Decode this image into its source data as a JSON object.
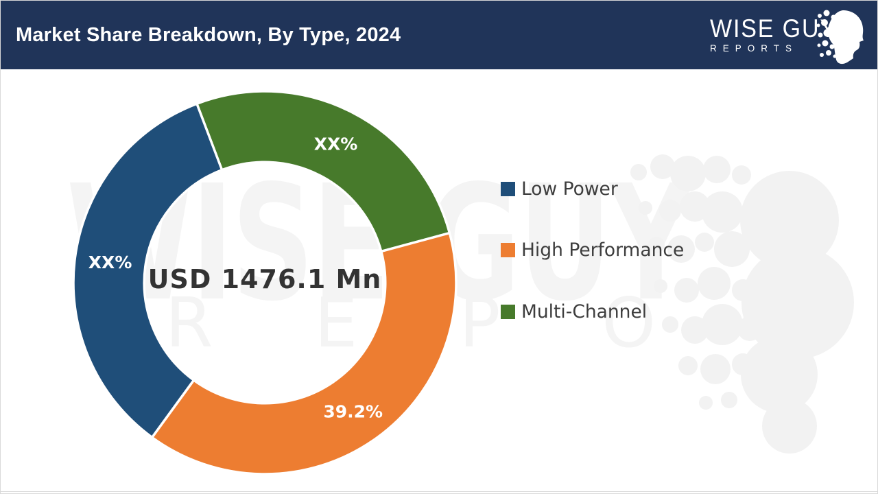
{
  "header": {
    "title": "Market Share Breakdown, By Type, 2024",
    "logo": {
      "line1": "WISE GUY",
      "line2": "REPORTS"
    }
  },
  "watermark": {
    "line1": "WISE GUY",
    "line2": "R E P O R T S"
  },
  "colors": {
    "header_bg": "#203459",
    "page_border": "#d9d9d9",
    "watermark_gray": "#f2f2f2"
  },
  "chart_data": {
    "type": "pie",
    "subtype": "donut",
    "title": "Market Share Breakdown, By Type, 2024",
    "center_label": "USD 1476.1 Mn",
    "start_angle_deg": 110.8,
    "direction": "clockwise",
    "inner_radius_ratio": 0.63,
    "legend_position": "right",
    "segments": [
      {
        "name": "Multi-Channel",
        "value_pct": 26.6,
        "display_label": "XX%",
        "color": "#477A2B"
      },
      {
        "name": "High Performance",
        "value_pct": 39.2,
        "display_label": "39.2%",
        "color": "#ED7D31"
      },
      {
        "name": "Low Power",
        "value_pct": 34.2,
        "display_label": "XX%",
        "color": "#1F4E79"
      }
    ],
    "legend": [
      {
        "label": "Low Power",
        "color": "#1F4E79"
      },
      {
        "label": "High Performance",
        "color": "#ED7D31"
      },
      {
        "label": "Multi-Channel",
        "color": "#477A2B"
      }
    ]
  }
}
